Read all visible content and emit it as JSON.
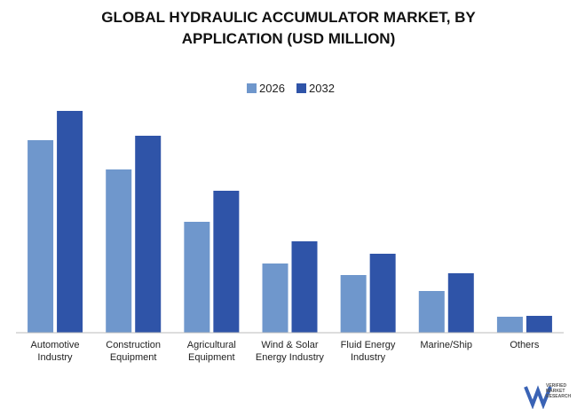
{
  "chart_data": {
    "type": "bar",
    "title": "GLOBAL HYDRAULIC ACCUMULATOR MARKET, BY APPLICATION (USD MILLION)",
    "categories": [
      "Automotive\nIndustry",
      "Construction\nEquipment",
      "Agricultural\nEquipment",
      "Wind & Solar\nEnergy Industry",
      "Fluid Energy\nIndustry",
      "Marine/Ship",
      "Others"
    ],
    "series": [
      {
        "name": "2026",
        "color": "#6f97cc",
        "values": [
          217,
          184,
          125,
          78,
          65,
          47,
          18
        ]
      },
      {
        "name": "2032",
        "color": "#2f54a8",
        "values": [
          250,
          222,
          160,
          103,
          89,
          67,
          19
        ]
      }
    ],
    "ylim": [
      0,
      260
    ],
    "legend": "top",
    "logo_text": "VERIFIED\nMARKET\nRESEARCH"
  }
}
